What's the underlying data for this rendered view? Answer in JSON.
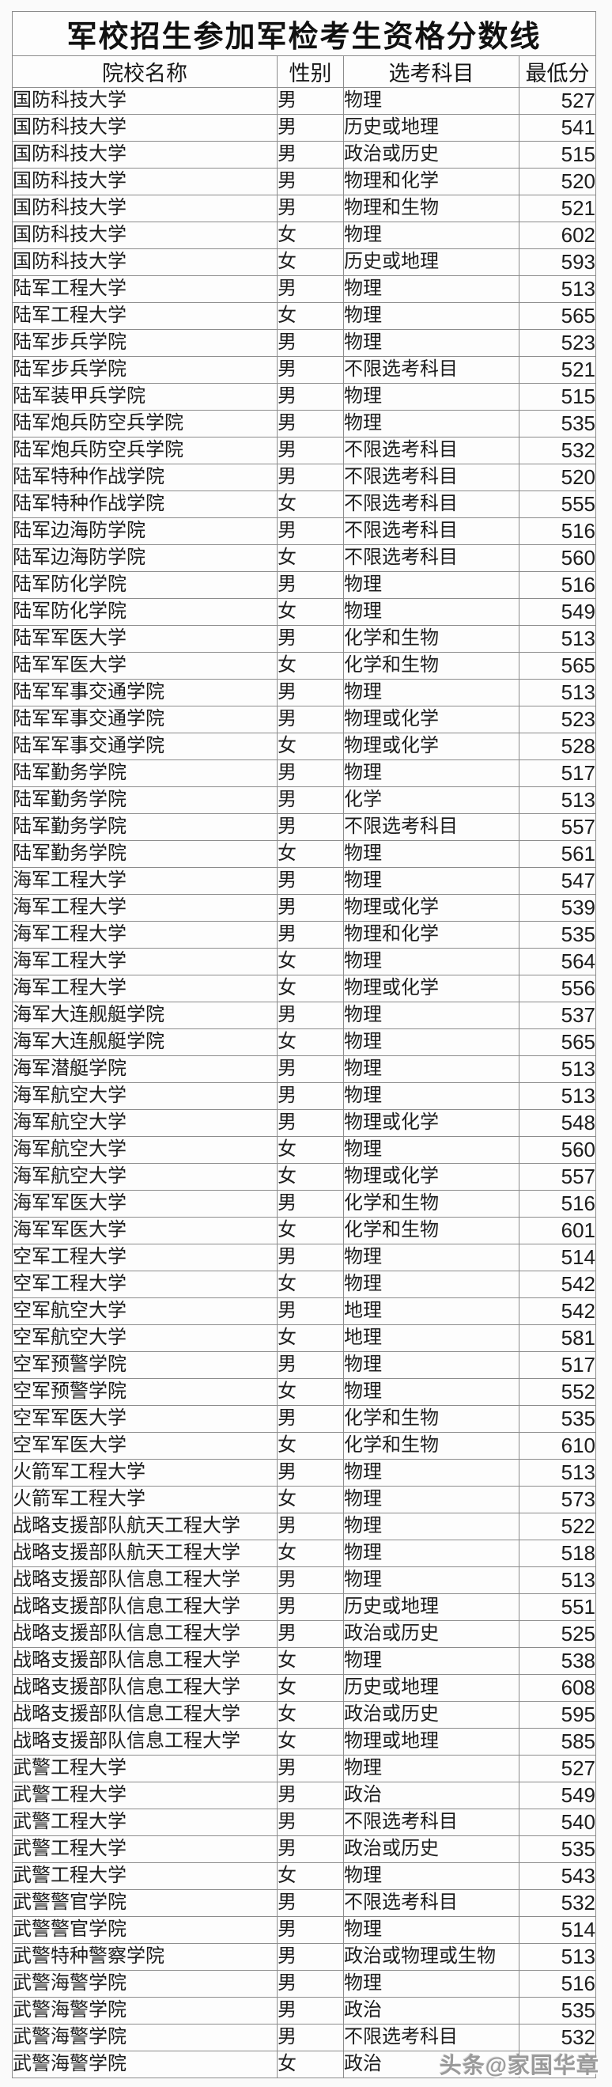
{
  "title": "军校招生参加军检考生资格分数线",
  "watermark": "头条@家国华章",
  "colors": {
    "border": "#8c8c8c",
    "text": "#1d1d1d",
    "background": "#fafafa",
    "watermark": "#9a9a9a"
  },
  "chart_data": {
    "type": "table",
    "title": "军校招生参加军检考生资格分数线",
    "columns": [
      "院校名称",
      "性别",
      "选考科目",
      "最低分"
    ],
    "rows": [
      [
        "国防科技大学",
        "男",
        "物理",
        "527"
      ],
      [
        "国防科技大学",
        "男",
        "历史或地理",
        "541"
      ],
      [
        "国防科技大学",
        "男",
        "政治或历史",
        "515"
      ],
      [
        "国防科技大学",
        "男",
        "物理和化学",
        "520"
      ],
      [
        "国防科技大学",
        "男",
        "物理和生物",
        "521"
      ],
      [
        "国防科技大学",
        "女",
        "物理",
        "602"
      ],
      [
        "国防科技大学",
        "女",
        "历史或地理",
        "593"
      ],
      [
        "陆军工程大学",
        "男",
        "物理",
        "513"
      ],
      [
        "陆军工程大学",
        "女",
        "物理",
        "565"
      ],
      [
        "陆军步兵学院",
        "男",
        "物理",
        "523"
      ],
      [
        "陆军步兵学院",
        "男",
        "不限选考科目",
        "521"
      ],
      [
        "陆军装甲兵学院",
        "男",
        "物理",
        "515"
      ],
      [
        "陆军炮兵防空兵学院",
        "男",
        "物理",
        "535"
      ],
      [
        "陆军炮兵防空兵学院",
        "男",
        "不限选考科目",
        "532"
      ],
      [
        "陆军特种作战学院",
        "男",
        "不限选考科目",
        "520"
      ],
      [
        "陆军特种作战学院",
        "女",
        "不限选考科目",
        "555"
      ],
      [
        "陆军边海防学院",
        "男",
        "不限选考科目",
        "516"
      ],
      [
        "陆军边海防学院",
        "女",
        "不限选考科目",
        "560"
      ],
      [
        "陆军防化学院",
        "男",
        "物理",
        "516"
      ],
      [
        "陆军防化学院",
        "女",
        "物理",
        "549"
      ],
      [
        "陆军军医大学",
        "男",
        "化学和生物",
        "513"
      ],
      [
        "陆军军医大学",
        "女",
        "化学和生物",
        "565"
      ],
      [
        "陆军军事交通学院",
        "男",
        "物理",
        "513"
      ],
      [
        "陆军军事交通学院",
        "男",
        "物理或化学",
        "523"
      ],
      [
        "陆军军事交通学院",
        "女",
        "物理或化学",
        "528"
      ],
      [
        "陆军勤务学院",
        "男",
        "物理",
        "517"
      ],
      [
        "陆军勤务学院",
        "男",
        "化学",
        "513"
      ],
      [
        "陆军勤务学院",
        "男",
        "不限选考科目",
        "557"
      ],
      [
        "陆军勤务学院",
        "女",
        "物理",
        "561"
      ],
      [
        "海军工程大学",
        "男",
        "物理",
        "547"
      ],
      [
        "海军工程大学",
        "男",
        "物理或化学",
        "539"
      ],
      [
        "海军工程大学",
        "男",
        "物理和化学",
        "535"
      ],
      [
        "海军工程大学",
        "女",
        "物理",
        "564"
      ],
      [
        "海军工程大学",
        "女",
        "物理或化学",
        "556"
      ],
      [
        "海军大连舰艇学院",
        "男",
        "物理",
        "537"
      ],
      [
        "海军大连舰艇学院",
        "女",
        "物理",
        "565"
      ],
      [
        "海军潜艇学院",
        "男",
        "物理",
        "513"
      ],
      [
        "海军航空大学",
        "男",
        "物理",
        "513"
      ],
      [
        "海军航空大学",
        "男",
        "物理或化学",
        "548"
      ],
      [
        "海军航空大学",
        "女",
        "物理",
        "560"
      ],
      [
        "海军航空大学",
        "女",
        "物理或化学",
        "557"
      ],
      [
        "海军军医大学",
        "男",
        "化学和生物",
        "516"
      ],
      [
        "海军军医大学",
        "女",
        "化学和生物",
        "601"
      ],
      [
        "空军工程大学",
        "男",
        "物理",
        "514"
      ],
      [
        "空军工程大学",
        "女",
        "物理",
        "542"
      ],
      [
        "空军航空大学",
        "男",
        "地理",
        "542"
      ],
      [
        "空军航空大学",
        "女",
        "地理",
        "581"
      ],
      [
        "空军预警学院",
        "男",
        "物理",
        "517"
      ],
      [
        "空军预警学院",
        "女",
        "物理",
        "552"
      ],
      [
        "空军军医大学",
        "男",
        "化学和生物",
        "535"
      ],
      [
        "空军军医大学",
        "女",
        "化学和生物",
        "610"
      ],
      [
        "火箭军工程大学",
        "男",
        "物理",
        "513"
      ],
      [
        "火箭军工程大学",
        "女",
        "物理",
        "573"
      ],
      [
        "战略支援部队航天工程大学",
        "男",
        "物理",
        "522"
      ],
      [
        "战略支援部队航天工程大学",
        "女",
        "物理",
        "518"
      ],
      [
        "战略支援部队信息工程大学",
        "男",
        "物理",
        "513"
      ],
      [
        "战略支援部队信息工程大学",
        "男",
        "历史或地理",
        "551"
      ],
      [
        "战略支援部队信息工程大学",
        "男",
        "政治或历史",
        "525"
      ],
      [
        "战略支援部队信息工程大学",
        "女",
        "物理",
        "538"
      ],
      [
        "战略支援部队信息工程大学",
        "女",
        "历史或地理",
        "608"
      ],
      [
        "战略支援部队信息工程大学",
        "女",
        "政治或历史",
        "595"
      ],
      [
        "战略支援部队信息工程大学",
        "女",
        "物理或地理",
        "585"
      ],
      [
        "武警工程大学",
        "男",
        "物理",
        "527"
      ],
      [
        "武警工程大学",
        "男",
        "政治",
        "549"
      ],
      [
        "武警工程大学",
        "男",
        "不限选考科目",
        "540"
      ],
      [
        "武警工程大学",
        "男",
        "政治或历史",
        "535"
      ],
      [
        "武警工程大学",
        "女",
        "物理",
        "543"
      ],
      [
        "武警警官学院",
        "男",
        "不限选考科目",
        "532"
      ],
      [
        "武警警官学院",
        "男",
        "物理",
        "514"
      ],
      [
        "武警特种警察学院",
        "男",
        "政治或物理或生物",
        "513"
      ],
      [
        "武警海警学院",
        "男",
        "物理",
        "516"
      ],
      [
        "武警海警学院",
        "男",
        "政治",
        "535"
      ],
      [
        "武警海警学院",
        "男",
        "不限选考科目",
        "532"
      ],
      [
        "武警海警学院",
        "女",
        "政治",
        ""
      ]
    ]
  }
}
